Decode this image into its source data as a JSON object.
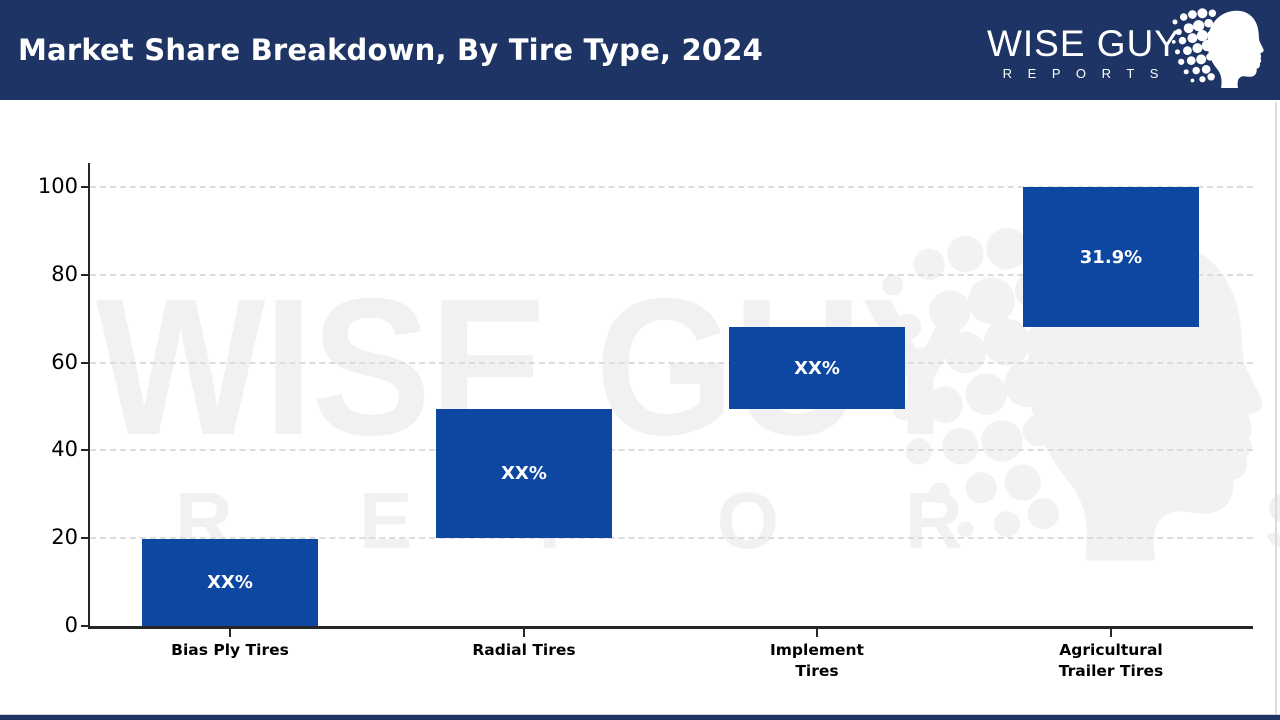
{
  "header": {
    "title": "Market Share Breakdown, By Tire Type, 2024",
    "brand_name": "WISE GUY",
    "brand_tagline": "R E P O R T S"
  },
  "watermark": {
    "brand_name": "WISE GUY",
    "brand_tagline": "R E P O R T S"
  },
  "chart_data": {
    "type": "bar",
    "subtype": "floating-segment-waterfall",
    "title": "Market Share Breakdown, By Tire Type, 2024",
    "categories": [
      "Bias Ply Tires",
      "Radial Tires",
      "Implement Tires",
      "Agricultural Trailer Tires"
    ],
    "segments": [
      {
        "category": "Bias Ply Tires",
        "start": 0,
        "end": 19.8,
        "label": "XX%"
      },
      {
        "category": "Radial Tires",
        "start": 20,
        "end": 49.4,
        "label": "XX%"
      },
      {
        "category": "Implement Tires",
        "start": 49.4,
        "end": 68.1,
        "label": "XX%"
      },
      {
        "category": "Agricultural Trailer Tires",
        "start": 68.1,
        "end": 100,
        "label": "31.9%"
      }
    ],
    "xlabel": "",
    "ylabel": "",
    "ylim": [
      0,
      100
    ],
    "yticks": [
      0,
      20,
      40,
      60,
      80,
      100
    ],
    "grid": "horizontal-dashed",
    "legend": "none"
  },
  "colors": {
    "header_bg": "#1e3464",
    "footer_bg": "#1e3464",
    "bar": "#0d47a1",
    "bar_label": "#ffffff",
    "grid": "#dcdcdc",
    "axis": "#262626",
    "watermark": "#f1f1f4"
  }
}
